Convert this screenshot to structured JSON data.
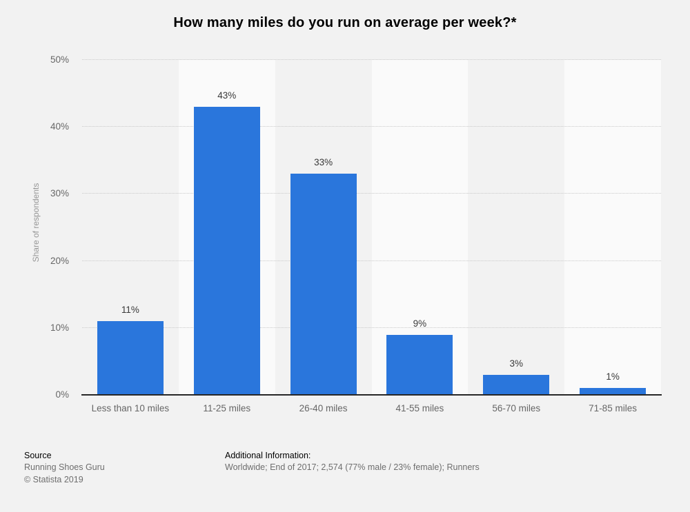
{
  "title": "How many miles do you run on average per week?*",
  "chart_data": {
    "type": "bar",
    "categories": [
      "Less than 10 miles",
      "11-25 miles",
      "26-40 miles",
      "41-55 miles",
      "56-70 miles",
      "71-85 miles"
    ],
    "values": [
      11,
      43,
      33,
      9,
      3,
      1
    ],
    "value_labels": [
      "11%",
      "43%",
      "33%",
      "9%",
      "3%",
      "1%"
    ],
    "title": "How many miles do you run on average per week?*",
    "xlabel": "",
    "ylabel": "Share of respondents",
    "ylim": [
      0,
      50
    ],
    "ytick_labels": [
      "0%",
      "10%",
      "20%",
      "30%",
      "40%",
      "50%"
    ],
    "grid": "horizontal-dotted",
    "legend": false,
    "bar_color": "#2a76dc",
    "plot_bands": "alternating category background stripes"
  },
  "y_axis": {
    "label": "Share of respondents",
    "ticks": [
      "0%",
      "10%",
      "20%",
      "30%",
      "40%",
      "50%"
    ]
  },
  "footer": {
    "source_heading": "Source",
    "source_name": "Running Shoes Guru",
    "copyright": "© Statista 2019",
    "additional_heading": "Additional Information:",
    "additional_text": "Worldwide; End of 2017; 2,574 (77% male / 23% female); Runners"
  },
  "colors": {
    "bar": "#2a76dc",
    "background": "#f2f2f2",
    "band_light": "#fafafa",
    "grid_line": "#c9c9c9",
    "axis_line": "#262626",
    "tick_text": "#666666",
    "value_text": "#383838",
    "y_title_text": "#979797"
  }
}
